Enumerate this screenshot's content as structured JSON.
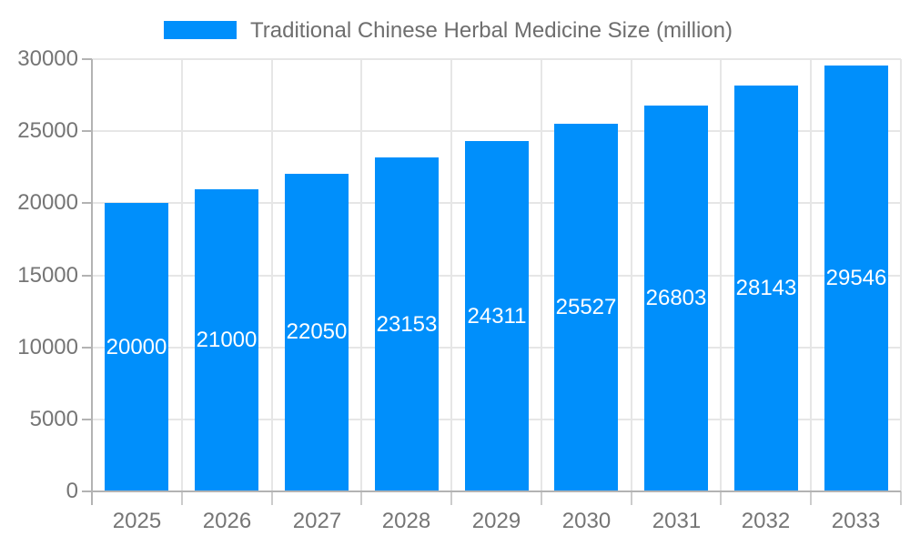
{
  "chart_data": {
    "type": "bar",
    "title": "Traditional Chinese Herbal Medicine Size (million)",
    "categories": [
      "2025",
      "2026",
      "2027",
      "2028",
      "2029",
      "2030",
      "2031",
      "2032",
      "2033"
    ],
    "values": [
      20000,
      21000,
      22050,
      23153,
      24311,
      25527,
      26803,
      28143,
      29546
    ],
    "value_labels": [
      "20000",
      "21000",
      "22050",
      "23153",
      "24311",
      "25527",
      "26803",
      "28143",
      "29546"
    ],
    "ytick_labels": [
      "0",
      "5000",
      "10000",
      "15000",
      "20000",
      "25000",
      "30000"
    ],
    "yticks": [
      0,
      5000,
      10000,
      15000,
      20000,
      25000,
      30000
    ],
    "ylim": [
      0,
      30000
    ],
    "xlabel": "",
    "ylabel": "",
    "grid": true,
    "legend_position": "top",
    "colors": {
      "bar": "#008FFB",
      "value_label_text": "#FFFFFF",
      "gridline": "#E6E6E6",
      "axis_line": "#B3B3B3",
      "minor_tick": "#CCCCCC",
      "tick_label_text": "#757575",
      "legend_text": "#6E6E6E",
      "background": "#FFFFFF"
    }
  }
}
